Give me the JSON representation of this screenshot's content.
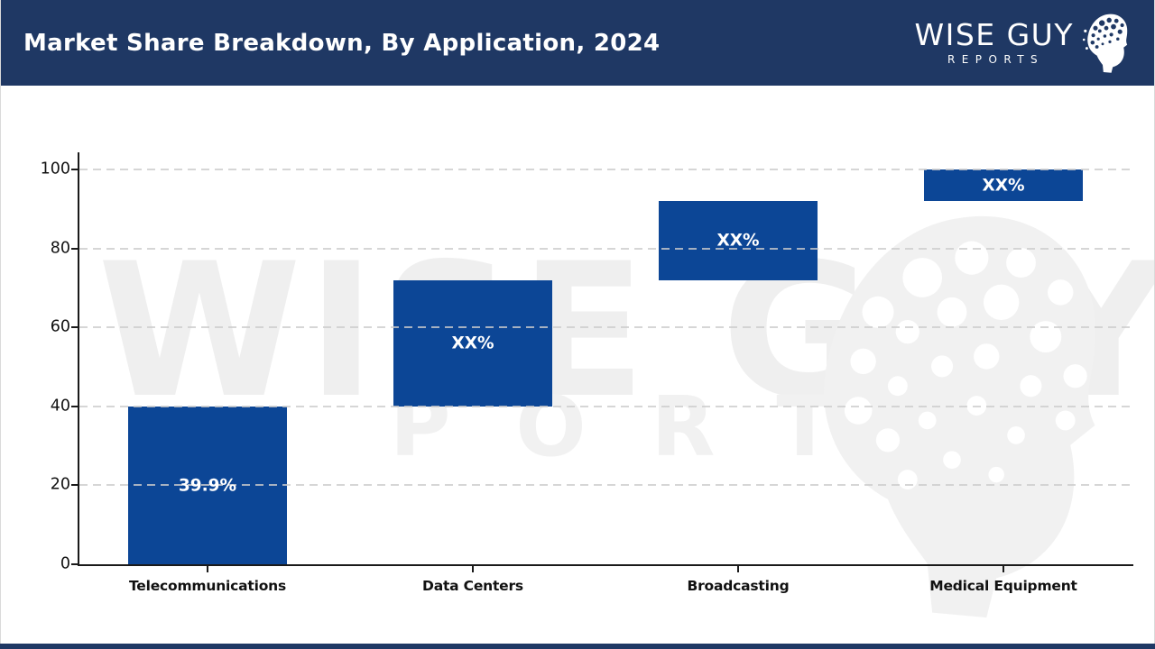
{
  "header": {
    "title": "Market Share Breakdown, By Application, 2024",
    "logo": {
      "line1": "WISE GUY",
      "line2": "REPORTS"
    }
  },
  "watermark": {
    "line1": "WISE GUY",
    "line2": "PORTS"
  },
  "chart_data": {
    "type": "bar",
    "subtype": "floating-waterfall",
    "title": "Market Share Breakdown, By Application, 2024",
    "categories": [
      "Telecommunications",
      "Data Centers",
      "Broadcasting",
      "Medical Equipment"
    ],
    "segments": [
      {
        "category": "Telecommunications",
        "start": 0,
        "end": 39.9,
        "label": "39.9%"
      },
      {
        "category": "Data Centers",
        "start": 39.9,
        "end": 71.9,
        "label": "XX%"
      },
      {
        "category": "Broadcasting",
        "start": 71.9,
        "end": 91.9,
        "label": "XX%"
      },
      {
        "category": "Medical Equipment",
        "start": 91.9,
        "end": 100,
        "label": "XX%"
      }
    ],
    "xlabel": "",
    "ylabel": "",
    "ylim": [
      0,
      104
    ],
    "yticks": [
      0,
      20,
      40,
      60,
      80,
      100
    ],
    "grid": "horizontal-dashed",
    "legend": "none"
  },
  "colors": {
    "header_bg": "#1f3864",
    "bar": "#0c4696",
    "bar_label": "#ffffff",
    "grid": "#cccccc",
    "axis": "#1a1a1a",
    "watermark": "#efefef"
  }
}
